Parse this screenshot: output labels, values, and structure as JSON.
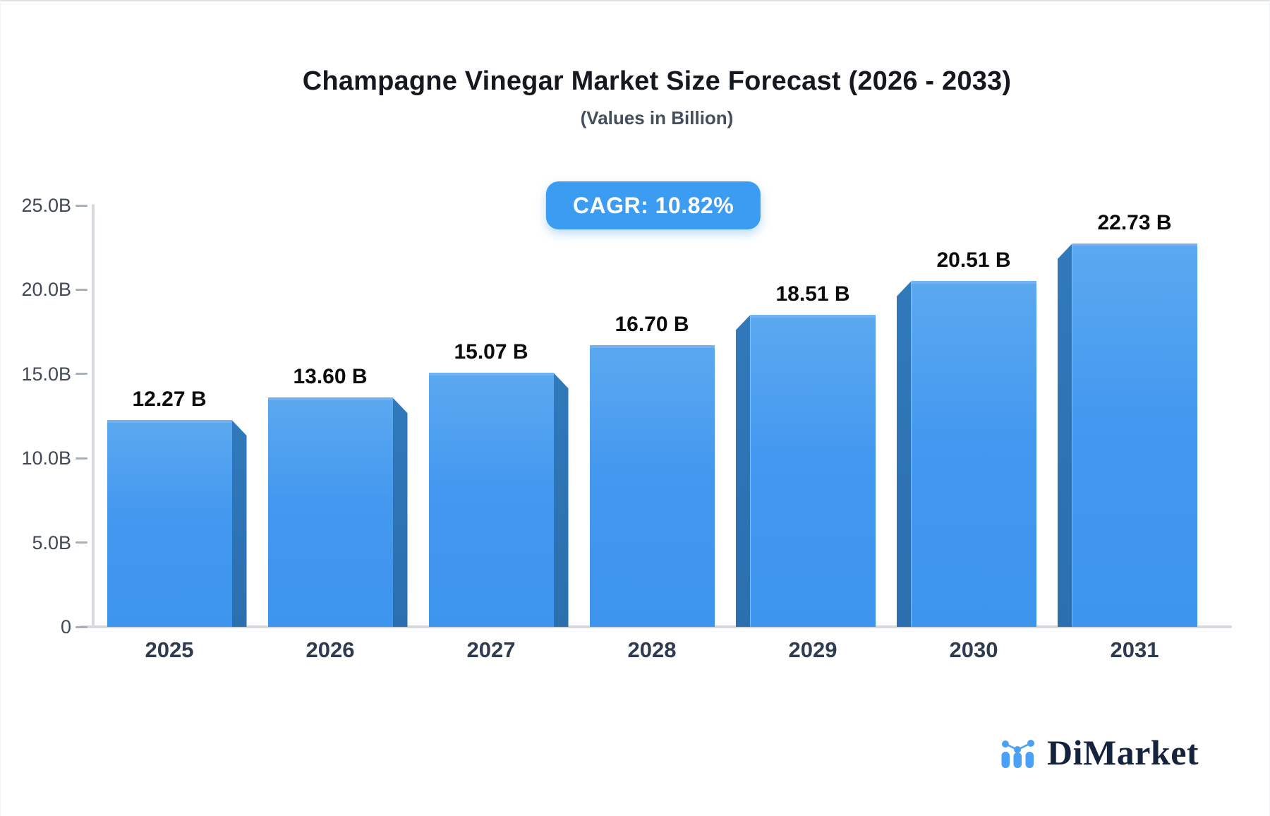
{
  "header": {
    "title": "Champagne Vinegar Market Size Forecast (2026 - 2033)",
    "subtitle": "(Values in Billion)",
    "cagr_label": "CAGR: 10.82%"
  },
  "chart_data": {
    "type": "bar",
    "title": "Champagne Vinegar Market Size Forecast (2026 - 2033)",
    "subtitle": "(Values in Billion)",
    "cagr": "10.82%",
    "categories": [
      "2025",
      "2026",
      "2027",
      "2028",
      "2029",
      "2030",
      "2031"
    ],
    "values": [
      12.27,
      13.6,
      15.07,
      16.7,
      18.51,
      20.51,
      22.73
    ],
    "bar_labels": [
      "12.27 B",
      "13.60 B",
      "15.07 B",
      "16.70 B",
      "18.51 B",
      "20.51 B",
      "22.73 B"
    ],
    "xlabel": "",
    "ylabel": "",
    "ylim": [
      0,
      25
    ],
    "y_tick_values": [
      0,
      5,
      10,
      15,
      20,
      25
    ],
    "y_tick_labels": [
      "0",
      "5.0B",
      "10.0B",
      "15.0B",
      "20.0B",
      "25.0B"
    ],
    "grid": false,
    "legend": false,
    "style": "3d-perspective-bars",
    "colors": {
      "bar_face": "#4398ef",
      "bar_face_light": "#5ba8f0",
      "bar_top_highlight": "#71b3f2",
      "bar_side": "#2d73b4",
      "badge_blue": "#3b9cf1",
      "axis_gray": "#d6d9de",
      "tick_gray": "#aab0b9",
      "y_label_color": "#3e4856",
      "x_label_color": "#2f3b4f",
      "value_label_color": "#0b0b0b",
      "title_color": "#15191f",
      "subtitle_color": "#454e5c"
    }
  },
  "footer": {
    "logo_text": "DiMarket"
  }
}
